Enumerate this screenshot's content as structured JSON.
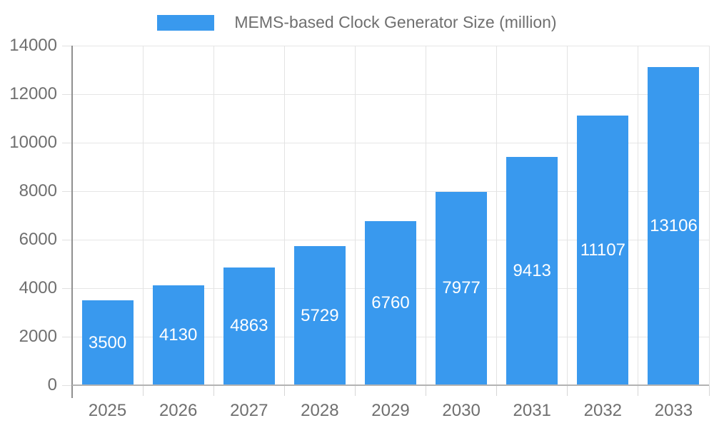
{
  "legend": {
    "label": "MEMS-based Clock Generator Size (million)"
  },
  "chart_data": {
    "type": "bar",
    "title": "MEMS-based Clock Generator Size (million)",
    "categories": [
      "2025",
      "2026",
      "2027",
      "2028",
      "2029",
      "2030",
      "2031",
      "2032",
      "2033"
    ],
    "values": [
      3500,
      4130,
      4863,
      5729,
      6760,
      7977,
      9413,
      11107,
      13106
    ],
    "series": [
      {
        "name": "MEMS-based Clock Generator Size (million)",
        "values": [
          3500,
          4130,
          4863,
          5729,
          6760,
          7977,
          9413,
          11107,
          13106
        ]
      }
    ],
    "xlabel": "",
    "ylabel": "",
    "ylim": [
      0,
      14000
    ],
    "ytick_step": 2000,
    "ytick_labels": [
      "0",
      "2000",
      "4000",
      "6000",
      "8000",
      "10000",
      "12000",
      "14000"
    ],
    "grid": true,
    "legend_position": "top",
    "value_labels": "inside-center",
    "colors": {
      "bar": "#3999ee",
      "value_label": "#ffffff",
      "axis_text": "#6f6f6f",
      "gridline": "#e6e6e6",
      "y_axis_line": "#8f8f8f",
      "x_axis_line": "#b3b3b3"
    }
  }
}
